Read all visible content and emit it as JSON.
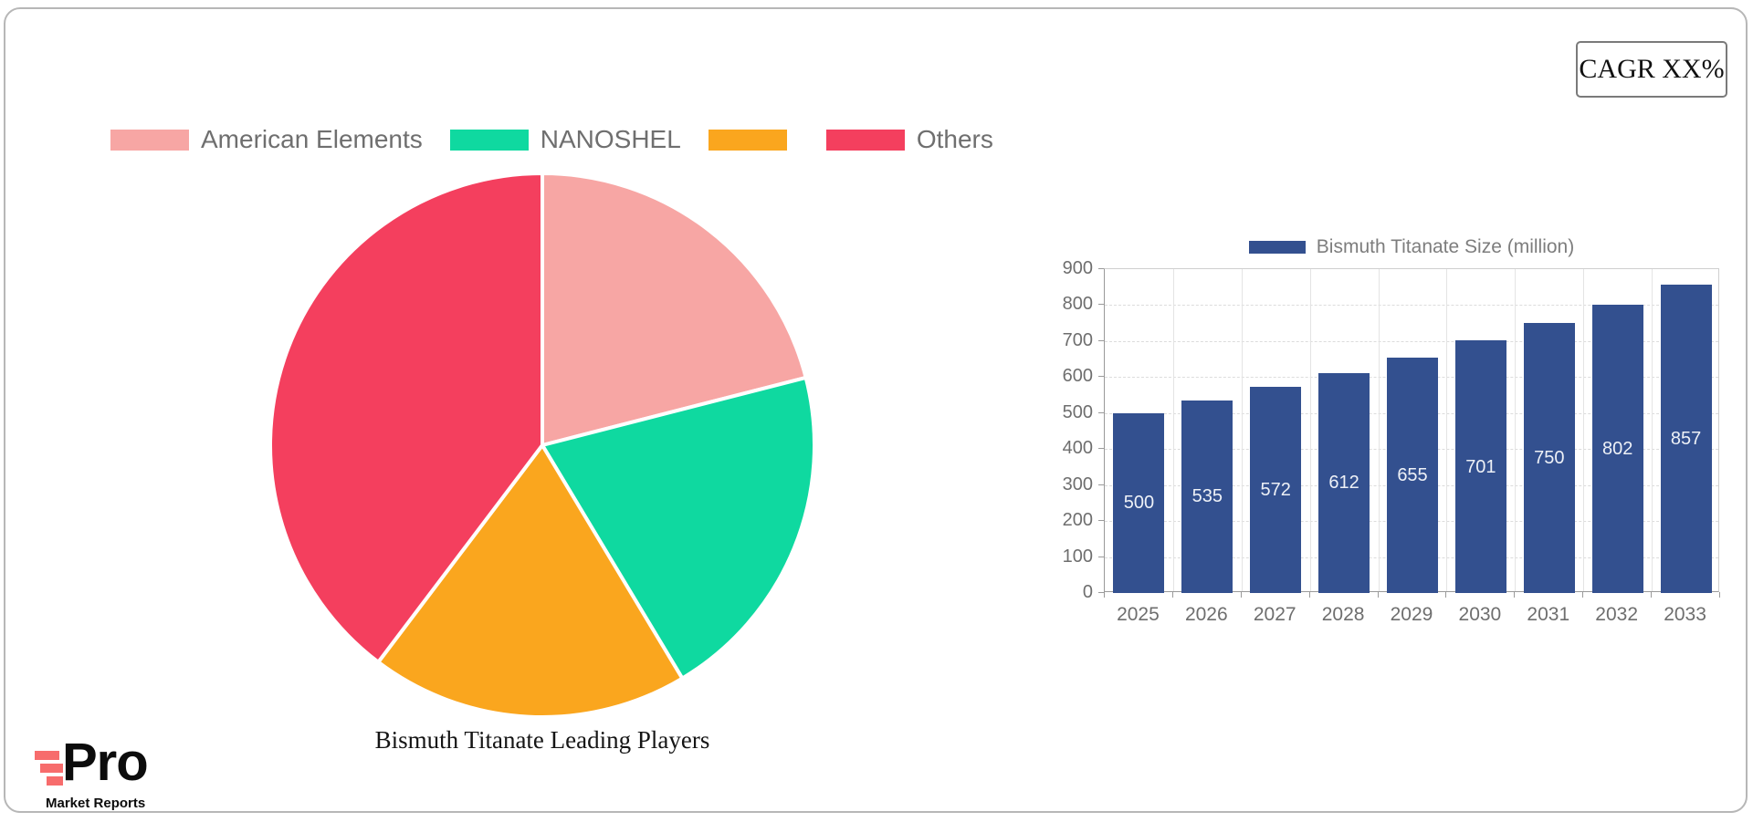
{
  "page": {
    "cagr_label": "CAGR XX%"
  },
  "logo": {
    "brand": "Pro",
    "tagline": "Market Reports"
  },
  "chart_data": [
    {
      "type": "pie",
      "title": "Bismuth Titanate Leading Players",
      "legend_position": "top",
      "start_angle_deg": -90,
      "direction": "clockwise",
      "slices": [
        {
          "label": "American Elements",
          "value": 21.0,
          "color": "#f7a6a4"
        },
        {
          "label": "NANOSHEL",
          "value": 20.4,
          "color": "#0fd9a0"
        },
        {
          "label": "",
          "value": 18.9,
          "color": "#faa61e"
        },
        {
          "label": "Others",
          "value": 39.7,
          "color": "#f43f5e"
        }
      ]
    },
    {
      "type": "bar",
      "legend": "Bismuth Titanate Size (million)",
      "categories": [
        "2025",
        "2026",
        "2027",
        "2028",
        "2029",
        "2030",
        "2031",
        "2032",
        "2033"
      ],
      "values": [
        500,
        535,
        572,
        612,
        655,
        701,
        750,
        802,
        857
      ],
      "ylim": [
        0,
        900
      ],
      "ytick_step": 100,
      "bar_color": "#33508f",
      "value_label_color": "#eef1f7",
      "grid": true,
      "legend_position": "top"
    }
  ]
}
